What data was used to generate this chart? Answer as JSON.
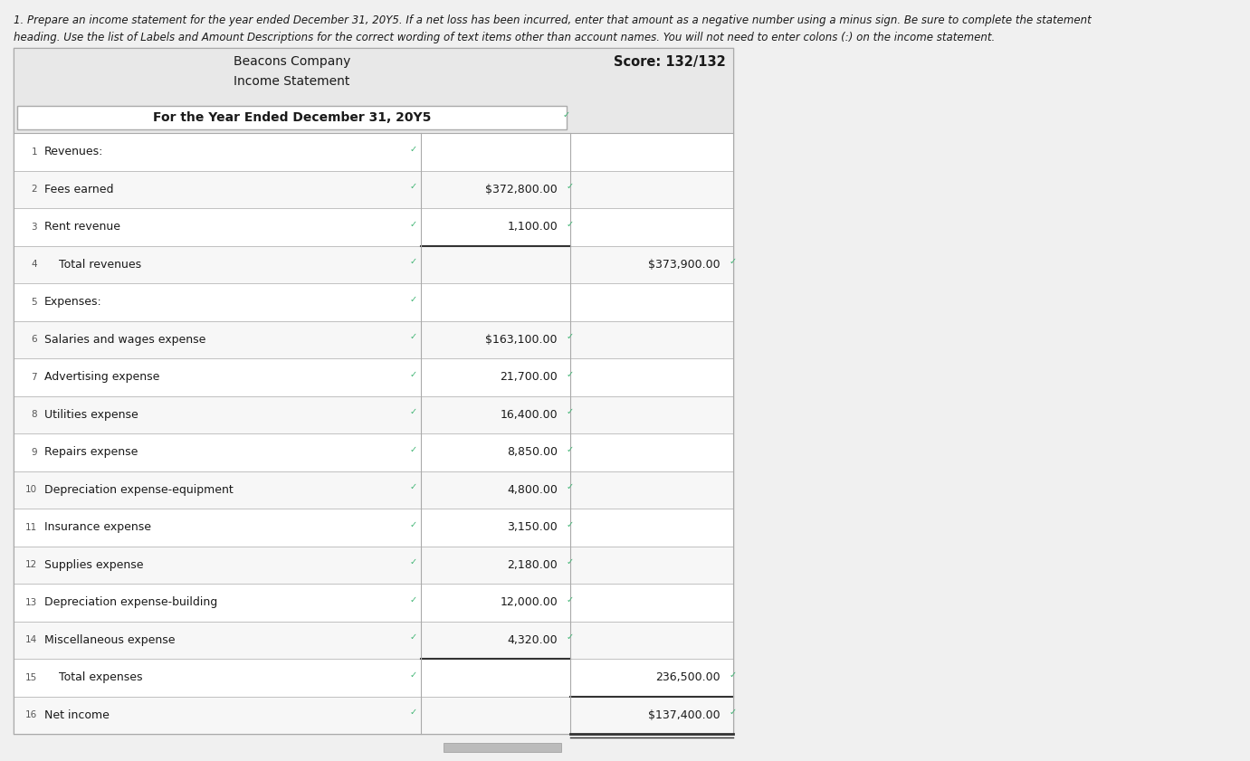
{
  "instruction_line1": "1. Prepare an income statement for the year ended December 31, 20Y5. If a net loss has been incurred, enter that amount as a negative number using a minus sign. Be sure to complete the statement",
  "instruction_line2": "heading. Use the list of Labels and Amount Descriptions for the correct wording of text items other than account names. You will not need to enter colons (:) on the income statement.",
  "company": "Beacons Company",
  "statement_type": "Income Statement",
  "period": "For the Year Ended December 31, 20Y5",
  "score": "Score: 132/132",
  "bg_color": "#f0f0f0",
  "header_bg": "#e8e8e8",
  "rows": [
    {
      "row_num": "1",
      "label": "Revenues:",
      "indent": false,
      "col1": "",
      "col2": "",
      "check1": true,
      "check2": false,
      "check3": false
    },
    {
      "row_num": "2",
      "label": "Fees earned",
      "indent": false,
      "col1": "$372,800.00",
      "col2": "",
      "check1": true,
      "check2": true,
      "check3": false
    },
    {
      "row_num": "3",
      "label": "Rent revenue",
      "indent": false,
      "col1": "1,100.00",
      "col2": "",
      "check1": true,
      "check2": true,
      "check3": false
    },
    {
      "row_num": "4",
      "label": "Total revenues",
      "indent": true,
      "col1": "",
      "col2": "$373,900.00",
      "check1": true,
      "check2": false,
      "check3": true
    },
    {
      "row_num": "5",
      "label": "Expenses:",
      "indent": false,
      "col1": "",
      "col2": "",
      "check1": true,
      "check2": false,
      "check3": false
    },
    {
      "row_num": "6",
      "label": "Salaries and wages expense",
      "indent": false,
      "col1": "$163,100.00",
      "col2": "",
      "check1": true,
      "check2": true,
      "check3": false
    },
    {
      "row_num": "7",
      "label": "Advertising expense",
      "indent": false,
      "col1": "21,700.00",
      "col2": "",
      "check1": true,
      "check2": true,
      "check3": false
    },
    {
      "row_num": "8",
      "label": "Utilities expense",
      "indent": false,
      "col1": "16,400.00",
      "col2": "",
      "check1": true,
      "check2": true,
      "check3": false
    },
    {
      "row_num": "9",
      "label": "Repairs expense",
      "indent": false,
      "col1": "8,850.00",
      "col2": "",
      "check1": true,
      "check2": true,
      "check3": false
    },
    {
      "row_num": "10",
      "label": "Depreciation expense-equipment",
      "indent": false,
      "col1": "4,800.00",
      "col2": "",
      "check1": true,
      "check2": true,
      "check3": false
    },
    {
      "row_num": "11",
      "label": "Insurance expense",
      "indent": false,
      "col1": "3,150.00",
      "col2": "",
      "check1": true,
      "check2": true,
      "check3": false
    },
    {
      "row_num": "12",
      "label": "Supplies expense",
      "indent": false,
      "col1": "2,180.00",
      "col2": "",
      "check1": true,
      "check2": true,
      "check3": false
    },
    {
      "row_num": "13",
      "label": "Depreciation expense-building",
      "indent": false,
      "col1": "12,000.00",
      "col2": "",
      "check1": true,
      "check2": true,
      "check3": false
    },
    {
      "row_num": "14",
      "label": "Miscellaneous expense",
      "indent": false,
      "col1": "4,320.00",
      "col2": "",
      "check1": true,
      "check2": true,
      "check3": false
    },
    {
      "row_num": "15",
      "label": "Total expenses",
      "indent": true,
      "col1": "",
      "col2": "236,500.00",
      "check1": true,
      "check2": false,
      "check3": true
    },
    {
      "row_num": "16",
      "label": "Net income",
      "indent": false,
      "col1": "",
      "col2": "$137,400.00",
      "check1": true,
      "check2": false,
      "check3": true
    }
  ],
  "check_color": "#3cb371",
  "border_color": "#aaaaaa",
  "text_color": "#1a1a1a",
  "font_size_instruction": 8.5,
  "font_size_table": 9.0,
  "font_size_header": 10.0
}
